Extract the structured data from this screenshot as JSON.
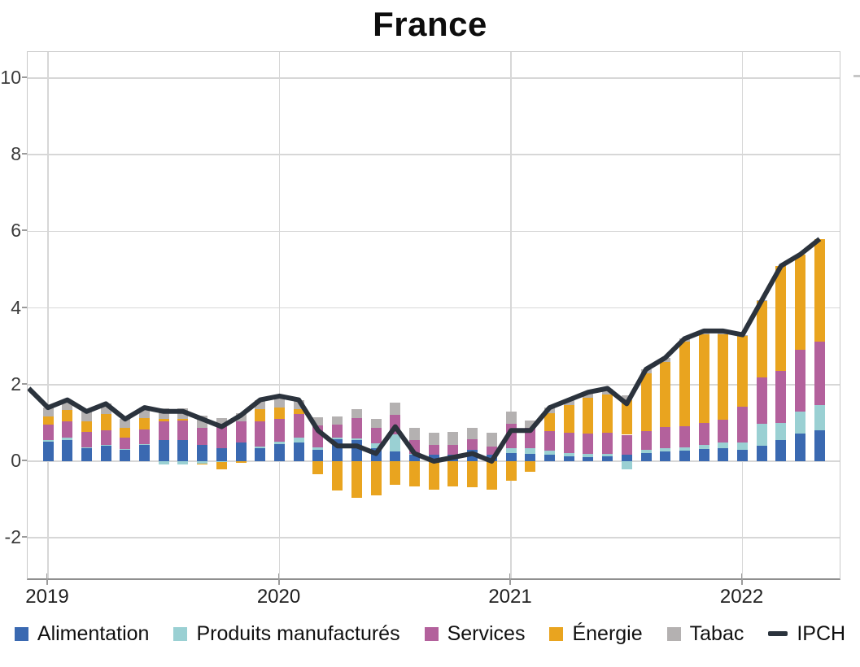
{
  "title": "France",
  "y_axis": {
    "tick_labels": [
      "10",
      "8",
      "6",
      "4",
      "2",
      "0",
      "-2"
    ]
  },
  "x_axis": {
    "tick_labels": [
      "2019",
      "2020",
      "2021",
      "2022"
    ]
  },
  "legend": [
    {
      "label": "Alimentation",
      "color": "#3a69b1",
      "shape": "square"
    },
    {
      "label": "Produits manufacturés",
      "color": "#9ad0d3",
      "shape": "square"
    },
    {
      "label": "Services",
      "color": "#b3619c",
      "shape": "square"
    },
    {
      "label": "Énergie",
      "color": "#e9a41f",
      "shape": "square"
    },
    {
      "label": "Tabac",
      "color": "#b4b1b1",
      "shape": "square"
    },
    {
      "label": "IPCH",
      "color": "#2b333d",
      "shape": "dash"
    }
  ],
  "chart_data": {
    "type": "bar",
    "subtype": "stacked-bars-with-line",
    "title": "France",
    "ylabel": "",
    "xlabel": "",
    "ylim": [
      -3.1,
      10.7
    ],
    "y_ticks": [
      10,
      8,
      6,
      4,
      2,
      0,
      -2
    ],
    "x_year_ticks": [
      "2019",
      "2020",
      "2021",
      "2022"
    ],
    "grid": true,
    "legend_position": "bottom",
    "months": [
      "2019-01",
      "2019-02",
      "2019-03",
      "2019-04",
      "2019-05",
      "2019-06",
      "2019-07",
      "2019-08",
      "2019-09",
      "2019-10",
      "2019-11",
      "2019-12",
      "2020-01",
      "2020-02",
      "2020-03",
      "2020-04",
      "2020-05",
      "2020-06",
      "2020-07",
      "2020-08",
      "2020-09",
      "2020-10",
      "2020-11",
      "2020-12",
      "2021-01",
      "2021-02",
      "2021-03",
      "2021-04",
      "2021-05",
      "2021-06",
      "2021-07",
      "2021-08",
      "2021-09",
      "2021-10",
      "2021-11",
      "2021-12",
      "2022-01",
      "2022-02",
      "2022-03",
      "2022-04",
      "2022-05"
    ],
    "series": [
      {
        "name": "Alimentation",
        "color": "#3a69b1",
        "values": [
          0.5,
          0.55,
          0.35,
          0.4,
          0.3,
          0.43,
          0.55,
          0.55,
          0.42,
          0.35,
          0.48,
          0.35,
          0.45,
          0.48,
          0.3,
          0.58,
          0.55,
          0.34,
          0.25,
          0.18,
          0.16,
          0.18,
          0.3,
          0.18,
          0.21,
          0.2,
          0.16,
          0.12,
          0.11,
          0.12,
          0.16,
          0.22,
          0.25,
          0.28,
          0.32,
          0.35,
          0.3,
          0.4,
          0.55,
          0.73,
          0.8
        ]
      },
      {
        "name": "Produits manufacturés",
        "color": "#9ad0d3",
        "values": [
          0.06,
          0.07,
          0.02,
          0.02,
          0.02,
          0.02,
          -0.08,
          -0.08,
          -0.07,
          -0.02,
          0.0,
          0.03,
          0.05,
          0.14,
          0.07,
          0.04,
          0.05,
          0.12,
          0.45,
          0.02,
          0.0,
          0.0,
          0.0,
          0.0,
          0.14,
          0.15,
          0.11,
          0.1,
          0.08,
          0.08,
          -0.22,
          0.07,
          0.1,
          0.09,
          0.1,
          0.13,
          0.18,
          0.58,
          0.45,
          0.57,
          0.67
        ]
      },
      {
        "name": "Services",
        "color": "#b3619c",
        "values": [
          0.4,
          0.42,
          0.4,
          0.38,
          0.3,
          0.37,
          0.5,
          0.52,
          0.45,
          0.56,
          0.55,
          0.65,
          0.6,
          0.62,
          0.57,
          0.33,
          0.52,
          0.42,
          0.52,
          0.35,
          0.26,
          0.25,
          0.27,
          0.2,
          0.62,
          0.52,
          0.51,
          0.52,
          0.53,
          0.55,
          0.53,
          0.5,
          0.55,
          0.55,
          0.57,
          0.6,
          0.95,
          1.2,
          1.35,
          1.6,
          1.65
        ]
      },
      {
        "name": "Énergie",
        "color": "#e9a41f",
        "values": [
          0.2,
          0.3,
          0.28,
          0.43,
          0.24,
          0.31,
          0.05,
          0.03,
          -0.02,
          -0.2,
          -0.05,
          0.32,
          0.3,
          0.12,
          -0.35,
          -0.77,
          -0.96,
          -0.9,
          -0.62,
          -0.66,
          -0.74,
          -0.66,
          -0.67,
          -0.74,
          -0.5,
          -0.27,
          0.48,
          0.72,
          0.93,
          1.0,
          0.91,
          1.5,
          1.69,
          2.2,
          2.33,
          2.24,
          1.85,
          2.0,
          2.75,
          2.5,
          2.68
        ]
      },
      {
        "name": "Tabac",
        "color": "#b4b1b1",
        "values": [
          0.24,
          0.26,
          0.25,
          0.27,
          0.24,
          0.27,
          0.28,
          0.28,
          0.32,
          0.21,
          0.22,
          0.25,
          0.3,
          0.24,
          0.21,
          0.22,
          0.24,
          0.22,
          0.3,
          0.31,
          0.32,
          0.33,
          0.3,
          0.36,
          0.33,
          0.2,
          0.14,
          0.14,
          0.15,
          0.15,
          0.12,
          0.11,
          0.11,
          0.08,
          0.08,
          0.08,
          0.02,
          0.02,
          0.0,
          0.0,
          0.0
        ]
      }
    ],
    "line": {
      "name": "IPCH",
      "color": "#2b333d",
      "pre_point": {
        "month": "2018-12",
        "value": 1.9
      },
      "values": [
        1.4,
        1.6,
        1.3,
        1.5,
        1.1,
        1.4,
        1.3,
        1.3,
        1.1,
        0.9,
        1.2,
        1.6,
        1.7,
        1.6,
        0.8,
        0.4,
        0.4,
        0.2,
        0.9,
        0.2,
        0.0,
        0.1,
        0.2,
        0.0,
        0.8,
        0.8,
        1.4,
        1.6,
        1.8,
        1.9,
        1.5,
        2.4,
        2.7,
        3.2,
        3.4,
        3.4,
        3.3,
        4.2,
        5.1,
        5.4,
        5.8
      ]
    }
  }
}
